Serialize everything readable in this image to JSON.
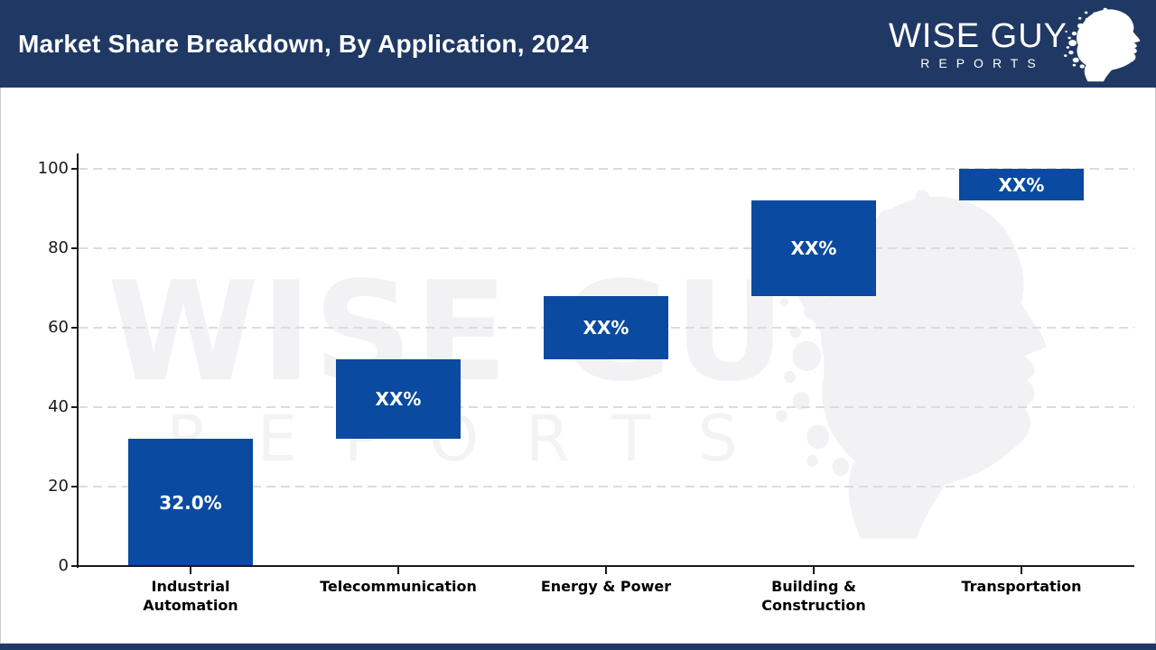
{
  "header": {
    "title": "Market Share Breakdown, By Application, 2024"
  },
  "logo": {
    "line1": "WISE GUY",
    "line2": "REPORTS"
  },
  "watermark": {
    "line1": "WISE GUY",
    "line2": "REPORTS"
  },
  "colors": {
    "header_navy": "#1F3864",
    "bar_blue": "#0A4AA0",
    "gridline": "#DCDCDC",
    "axis": "#1A1A1A",
    "watermark": "#F2F2F4",
    "bar_label_text": "#FFFFFF"
  },
  "chart_data": {
    "type": "bar",
    "subtype": "floating-waterfall",
    "title": "Market Share Breakdown, By Application, 2024",
    "categories": [
      "Industrial\nAutomation",
      "Telecommunication",
      "Energy & Power",
      "Building &\nConstruction",
      "Transportation"
    ],
    "bars": [
      {
        "category": "Industrial Automation",
        "start": 0,
        "end": 32,
        "value": 32,
        "label": "32.0%"
      },
      {
        "category": "Telecommunication",
        "start": 32,
        "end": 52,
        "value": 20,
        "label": "XX%"
      },
      {
        "category": "Energy & Power",
        "start": 52,
        "end": 68,
        "value": 16,
        "label": "XX%"
      },
      {
        "category": "Building & Construction",
        "start": 68,
        "end": 92,
        "value": 24,
        "label": "XX%"
      },
      {
        "category": "Transportation",
        "start": 92,
        "end": 100,
        "value": 8,
        "label": "XX%"
      }
    ],
    "yticks": [
      0,
      20,
      40,
      60,
      80,
      100
    ],
    "ylim": [
      0,
      104
    ],
    "xlabel": "",
    "ylabel": "",
    "grid": "dashed-horizontal",
    "legend": "none"
  }
}
